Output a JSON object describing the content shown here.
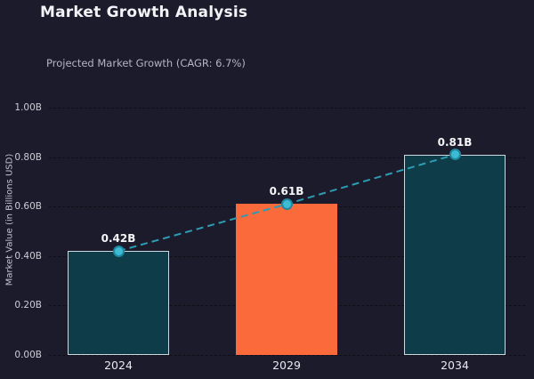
{
  "header": {
    "title": "Market Growth Analysis",
    "subtitle": "Projected Market Growth (CAGR: 6.7%)"
  },
  "chart_data": {
    "type": "bar",
    "title": "Market Growth Analysis",
    "subtitle": "Projected Market Growth (CAGR: 6.7%)",
    "categories": [
      "2024",
      "2029",
      "2034"
    ],
    "values": [
      0.42,
      0.61,
      0.81
    ],
    "value_labels": [
      "0.42B",
      "0.61B",
      "0.81B"
    ],
    "xlabel": "",
    "ylabel": "Market Value (in Billions USD)",
    "ylim": [
      0,
      1.0
    ],
    "ytick_values": [
      0,
      0.2,
      0.4,
      0.6,
      0.8,
      1.0
    ],
    "ytick_labels": [
      "0.00B",
      "0.20B",
      "0.40B",
      "0.60B",
      "0.80B",
      "1.00B"
    ],
    "grid": true,
    "legend": false,
    "highlight_index": 1,
    "trend_overlay": "dashed line with circular markers connecting bar tops",
    "colors": {
      "background": "#1b1b2b",
      "bar_fill": "#0e3c48",
      "bar_border": "#cdd9de",
      "highlight_bar_fill": "#fb6a3b",
      "trend_line": "#2d9cb3",
      "marker_fill": "#3dbbd3",
      "marker_border": "#1f87a0",
      "value_label": "#f5f6f8",
      "title_color": "#f2f3f6",
      "subtitle_color": "#b4b5c2"
    }
  }
}
